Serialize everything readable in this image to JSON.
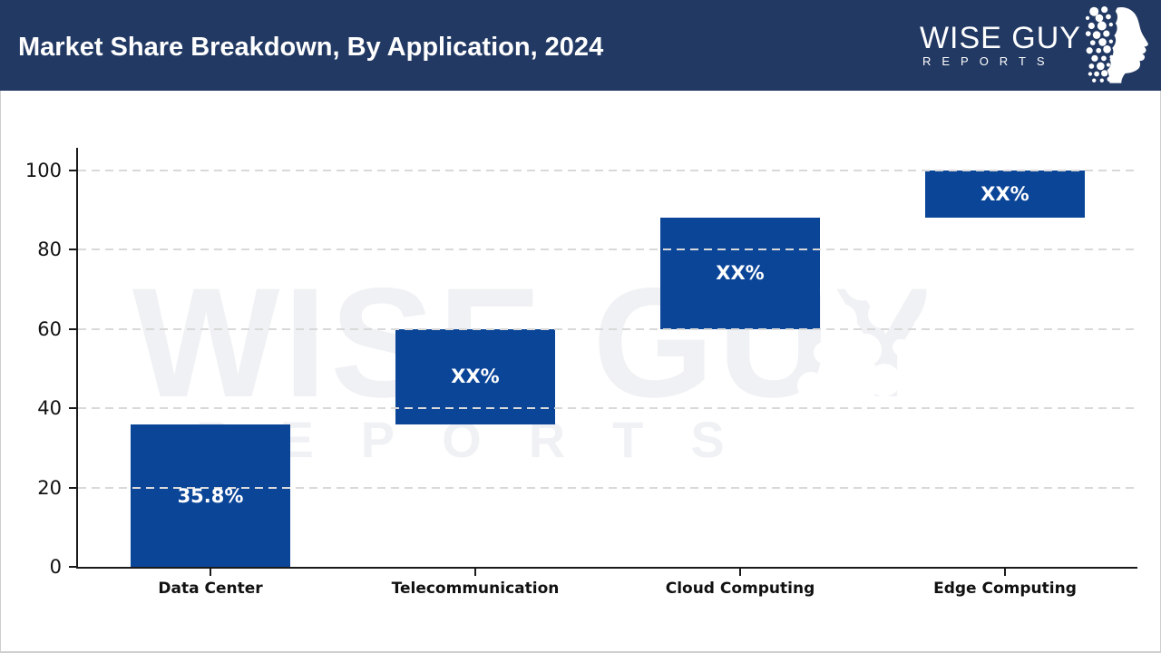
{
  "header": {
    "title": "Market Share Breakdown, By Application, 2024",
    "background_color": "#223963",
    "logo": {
      "line1": "WISE GUY",
      "line2": "REPORTS"
    }
  },
  "watermark": {
    "line1": "WISE GUY",
    "line2": "REPORTS"
  },
  "chart_data": {
    "type": "bar",
    "subtype": "waterfall",
    "title": "Market Share Breakdown, By Application, 2024",
    "categories": [
      "Data Center",
      "Telecommunication",
      "Cloud Computing",
      "Edge Computing"
    ],
    "segments": [
      {
        "category": "Data Center",
        "start": 0,
        "end": 35.8,
        "label": "35.8%"
      },
      {
        "category": "Telecommunication",
        "start": 35.8,
        "end": 60,
        "label": "XX%"
      },
      {
        "category": "Cloud Computing",
        "start": 60,
        "end": 88,
        "label": "XX%"
      },
      {
        "category": "Edge Computing",
        "start": 88,
        "end": 100,
        "label": "XX%"
      }
    ],
    "yticks": [
      0,
      20,
      40,
      60,
      80,
      100
    ],
    "ylim": [
      0,
      105.6
    ],
    "grid": "horizontal-dashed",
    "legend": "none",
    "bar_color": "#0b4598",
    "bar_label_color": "#ffffff",
    "axis_color": "#1a1a1a",
    "gridline_color": "#d9d9d9",
    "tick_label_color": "#111111"
  }
}
